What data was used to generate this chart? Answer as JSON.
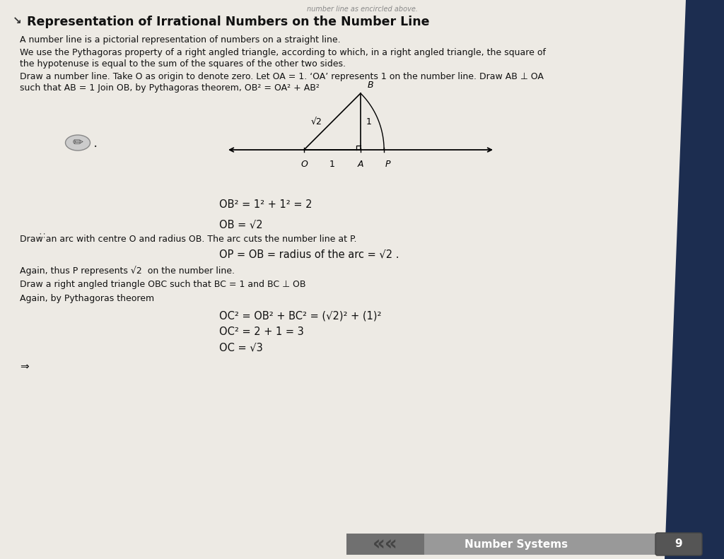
{
  "bg_color_left": "#c8c4be",
  "bg_color_right": "#1a2a4a",
  "paper_color": "#e8e4de",
  "top_text": "number line as encircled above.",
  "section_title": "Representation of Irrational Numbers on the Number Line",
  "line0": "A number line is a pictorial representation of numbers on a straight line.",
  "line1": "We use the Pythagoras property of a right angled triangle, according to which, in a right angled triangle, the square of",
  "line2": "the hypotenuse is equal to the sum of the squares of the other two sides.",
  "line3": "Draw a number line. Take O as origin to denote zero. Let OA = 1. ‘OA’ represents 1 on the number line. Draw AB ⊥ OA",
  "line4": "such that AB = 1 Join OB, by Pythagoras theorem, OB² = OA² + AB²",
  "eq1": "OB² = 1² + 1² = 2",
  "eq2": "OB = √2",
  "para1": "Draw an arc with centre O and radius OB. The arc cuts the number line at P.",
  "eq3": "OP = OB = radius of the arc = √2 .",
  "para2": "Again, thus P represents √2  on the number line.",
  "para3": "Draw a right angled triangle OBC such that BC = 1 and BC ⊥ OB",
  "para4": "Again, by Pythagoras theorem",
  "eq4": "OC² = OB² + BC² = (√2)² + (1)²",
  "eq5": "OC² = 2 + 1 = 3",
  "eq6": "OC = √3",
  "arrow_symbol": "⇒",
  "footer_text": "Number Systems",
  "footer_number": "9",
  "body_fontsize": 9.0,
  "title_fontsize": 12.5,
  "eq_fontsize": 10.5
}
